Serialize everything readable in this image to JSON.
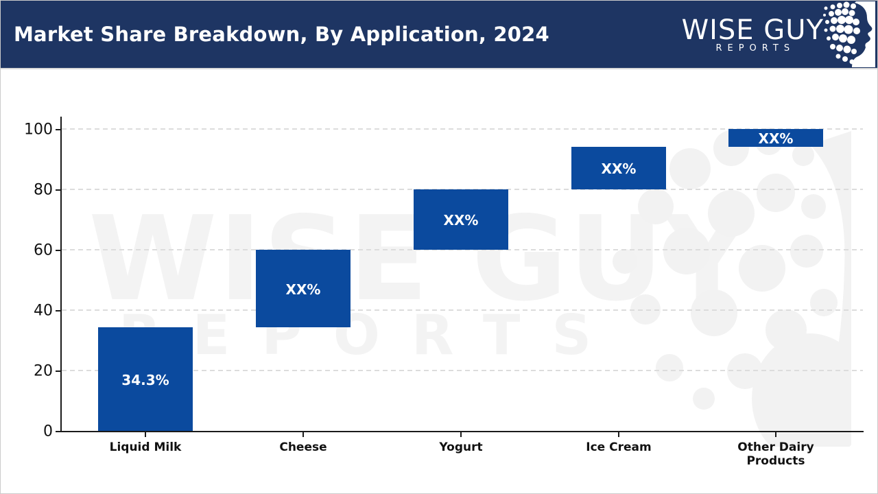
{
  "header": {
    "title": "Market Share Breakdown, By Application, 2024",
    "logo": {
      "line1": "WISE GUY",
      "line2": "REPORTS"
    }
  },
  "watermark": {
    "line1": "WISE GUY",
    "line2": "REPORTS"
  },
  "chart_data": {
    "type": "bar",
    "subtype": "waterfall",
    "title": "Market Share Breakdown, By Application, 2024",
    "categories": [
      "Liquid Milk",
      "Cheese",
      "Yogurt",
      "Ice Cream",
      "Other Dairy Products"
    ],
    "segments": [
      {
        "category": "Liquid Milk",
        "start": 0,
        "end": 34.3,
        "value": 34.3,
        "label": "34.3%"
      },
      {
        "category": "Cheese",
        "start": 34.3,
        "end": 60,
        "value": 25.7,
        "label": "XX%"
      },
      {
        "category": "Yogurt",
        "start": 60,
        "end": 80,
        "value": 20,
        "label": "XX%"
      },
      {
        "category": "Ice Cream",
        "start": 80,
        "end": 94.2,
        "value": 14.2,
        "label": "XX%"
      },
      {
        "category": "Other Dairy Products",
        "start": 94.2,
        "end": 100,
        "value": 5.8,
        "label": "XX%"
      }
    ],
    "yticks": [
      0,
      20,
      40,
      60,
      80,
      100
    ],
    "ylim": [
      0,
      104
    ],
    "xlabel": "",
    "ylabel": "",
    "grid": "horizontal-dashed",
    "legend": "none",
    "bar_color": "#0b4a9e",
    "bar_label_color": "#ffffff",
    "axis_color": "#1a1a1a",
    "grid_color": "#dcdcdc"
  },
  "colors": {
    "header_bg": "#1e3563",
    "bar_blue": "#0b4a9e",
    "watermark": "#f3f3f3",
    "page_bg": "#ffffff"
  }
}
